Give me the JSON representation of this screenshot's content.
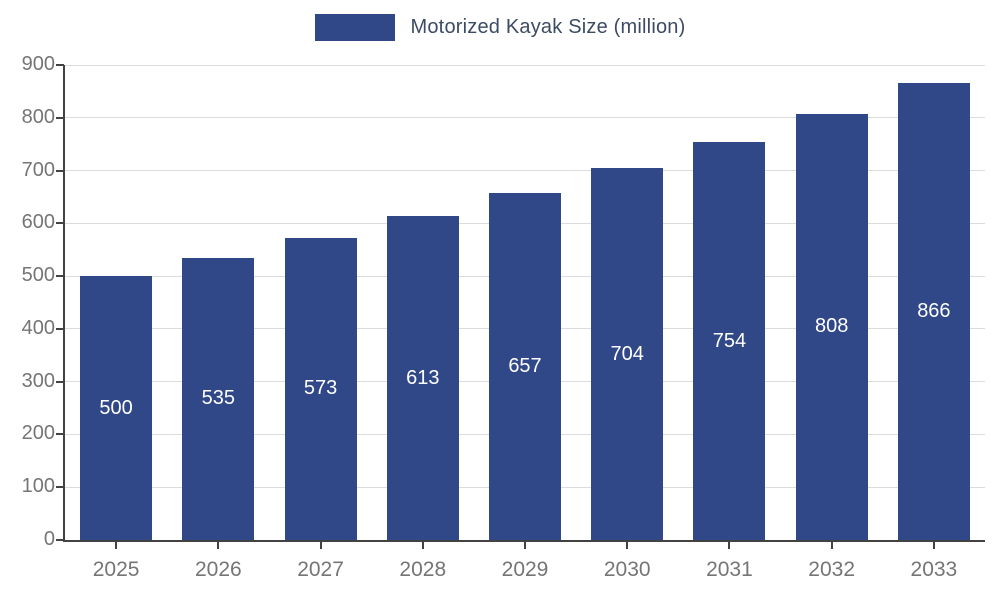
{
  "chart_data": {
    "type": "bar",
    "title": "Motorized Kayak Size (million)",
    "categories": [
      "2025",
      "2026",
      "2027",
      "2028",
      "2029",
      "2030",
      "2031",
      "2032",
      "2033"
    ],
    "values": [
      500,
      535,
      573,
      613,
      657,
      704,
      754,
      808,
      866
    ],
    "yticks": [
      0,
      100,
      200,
      300,
      400,
      500,
      600,
      700,
      800,
      900
    ],
    "ylim": [
      0,
      900
    ],
    "grid": true,
    "legend_position": "top",
    "colors": {
      "bar": "#304887",
      "axis": "#424242",
      "grid": "#dcdcdc",
      "tick_text": "#757575",
      "legend_text": "#3c4b63",
      "value_label": "#ffffff"
    }
  }
}
